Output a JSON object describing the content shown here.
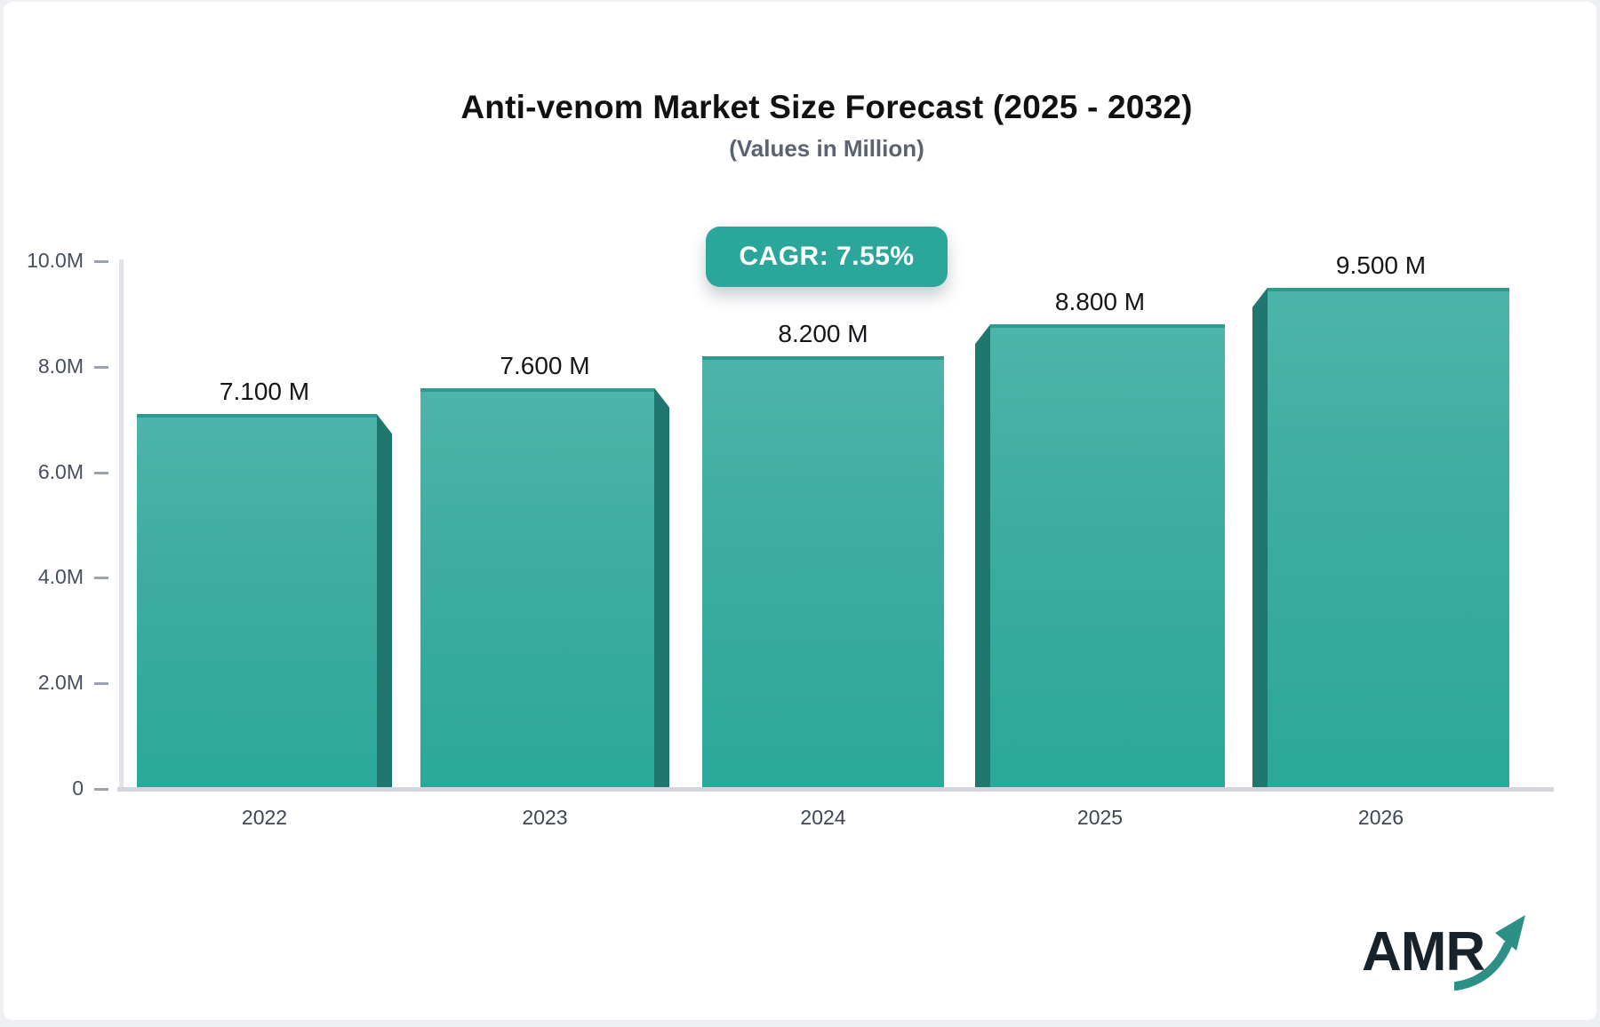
{
  "chart_data": {
    "type": "bar",
    "title": "Anti-venom Market Size Forecast (2025 - 2032)",
    "subtitle": "(Values in Million)",
    "badge_label": "CAGR: 7.55%",
    "categories": [
      "2022",
      "2023",
      "2024",
      "2025",
      "2026"
    ],
    "values": [
      7.1,
      7.6,
      8.2,
      8.8,
      9.5
    ],
    "value_labels": [
      "7.100 M",
      "7.600 M",
      "8.200 M",
      "8.800 M",
      "9.500 M"
    ],
    "ylim": [
      0,
      10
    ],
    "y_ticks": [
      {
        "value": 10,
        "label": "10.0M"
      },
      {
        "value": 8,
        "label": "8.0M"
      },
      {
        "value": 6,
        "label": "6.0M"
      },
      {
        "value": 4,
        "label": "4.0M"
      },
      {
        "value": 2,
        "label": "2.0M"
      },
      {
        "value": 0,
        "label": "0"
      }
    ],
    "grid": false,
    "legend": "none",
    "colors": {
      "bar_top": "#4db4aa",
      "bar_bottom": "#2aa89a",
      "bar_side_shadow": "#1f776f",
      "bar_top_edge": "#2e9a90",
      "badge_background": "#2aa69b",
      "badge_text": "#ffffff",
      "axis_line": "#e0e2e7",
      "baseline": "#d2d5db",
      "tick_text": "#474e5d",
      "logo_arrow": "#2d9087"
    }
  },
  "logo": {
    "text": "AMR"
  }
}
